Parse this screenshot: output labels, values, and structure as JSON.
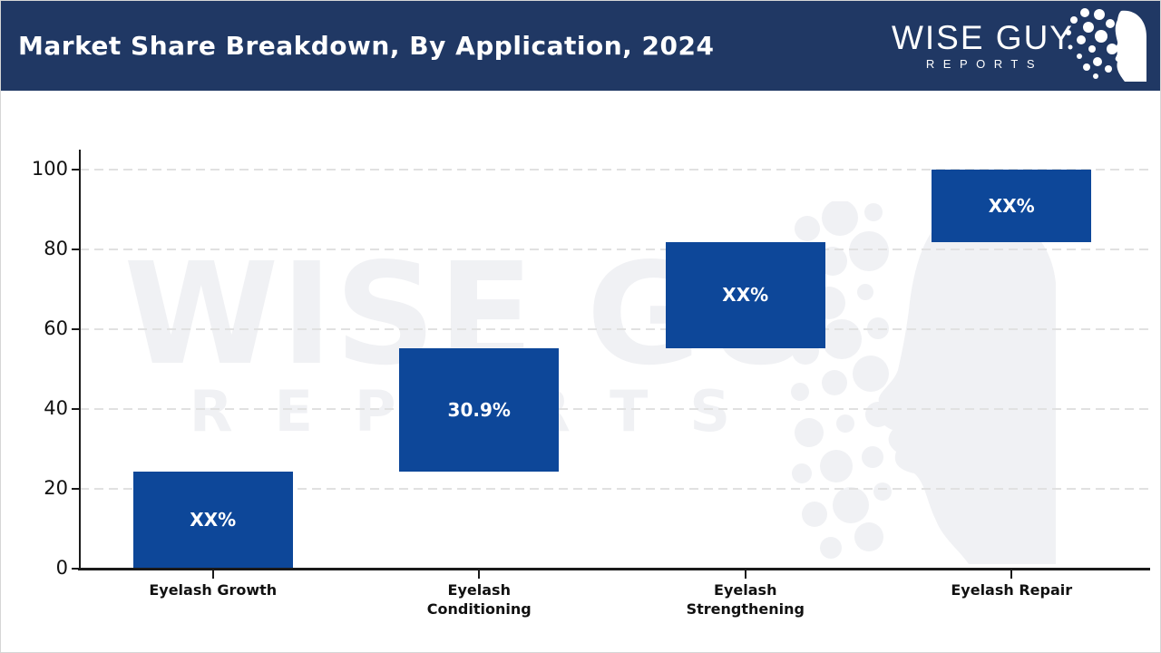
{
  "header": {
    "title": "Market Share Breakdown, By Application, 2024",
    "logo": {
      "line1": "WISE GUY",
      "line2": "REPORTS"
    }
  },
  "watermark": {
    "line1": "WISE GU",
    "line2": "REPORTS"
  },
  "chart_data": {
    "type": "bar",
    "subtype": "floating-waterfall",
    "title": "Market Share Breakdown, By Application, 2024",
    "categories": [
      "Eyelash Growth",
      "Eyelash\nConditioning",
      "Eyelash\nStrengthening",
      "Eyelash Repair"
    ],
    "bar_ranges": [
      [
        0,
        24.4
      ],
      [
        24.4,
        55.3
      ],
      [
        55.3,
        81.8
      ],
      [
        81.8,
        100
      ]
    ],
    "bar_labels": [
      "XX%",
      "30.9%",
      "XX%",
      "XX%"
    ],
    "ylabel": "",
    "xlabel": "",
    "ylim": [
      0,
      105
    ],
    "yticks": [
      0,
      20,
      40,
      60,
      80,
      100
    ],
    "grid": "horizontal-dashed",
    "legend": "none",
    "colors": {
      "bar": "#0d4799",
      "header_bg": "#203864",
      "grid": "#e1e1e1",
      "axis": "#1a1a1a",
      "watermark": "#f0f1f4",
      "bar_label_text": "#ffffff"
    }
  }
}
